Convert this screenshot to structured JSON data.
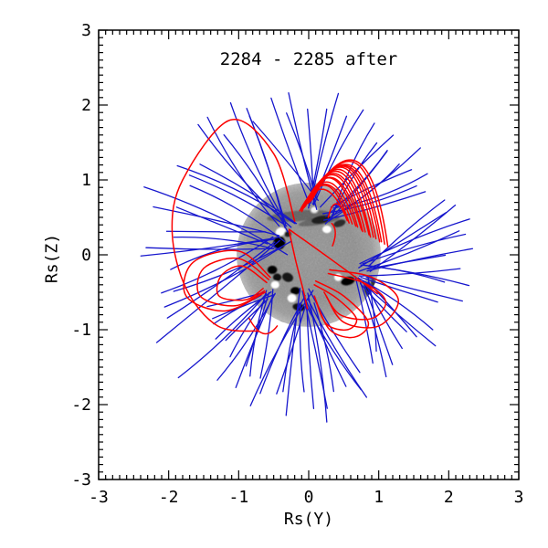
{
  "chart_data": {
    "type": "line",
    "title": "2284 - 2285 after",
    "xlabel": "Rs(Y)",
    "ylabel": "Rs(Z)",
    "xlim": [
      -3,
      3
    ],
    "ylim": [
      -3,
      3
    ],
    "xticks": [
      -3,
      -2,
      -1,
      0,
      1,
      2,
      3
    ],
    "yticks": [
      -3,
      -2,
      -1,
      0,
      1,
      2,
      3
    ],
    "xtick_labels": [
      "-3",
      "-2",
      "-1",
      "0",
      "1",
      "2",
      "3"
    ],
    "ytick_labels": [
      "-3",
      "-2",
      "-1",
      "0",
      "1",
      "2",
      "3"
    ],
    "minor_tick_step": 0.1,
    "grid": false,
    "legend_position": null,
    "description": "Coronal magnetic field line rendering over a solar magnetogram disk of radius 1 Rs centered at origin; blue open field lines, red closed field lines",
    "sun": {
      "center": [
        0,
        0
      ],
      "radius_rs": 1.0
    },
    "colors": {
      "open_line": "#1616cd",
      "closed_line": "#fb0000",
      "frame": "#000000",
      "background": "#ffffff",
      "disk_base": "#8f8f8f",
      "disk_limb": "#b9b9b9"
    },
    "open_field_fans": [
      {
        "name": "top",
        "n": 9,
        "foot": [
          0.05,
          0.65
        ],
        "foot_jitter": 0.12,
        "angles": [
          68,
          112
        ],
        "end_r": [
          1.9,
          2.25
        ],
        "curve": 0.07,
        "jitter_deg": 6,
        "seed": 11
      },
      {
        "name": "upper-right",
        "n": 11,
        "foot": [
          0.3,
          0.55
        ],
        "foot_jitter": 0.15,
        "angles": [
          26,
          64
        ],
        "end_r": [
          1.7,
          2.4
        ],
        "curve": 0.09,
        "jitter_deg": 7,
        "seed": 22
      },
      {
        "name": "right",
        "n": 12,
        "foot": [
          0.8,
          -0.2
        ],
        "foot_jitter": 0.1,
        "angles": [
          -16,
          22
        ],
        "end_r": [
          1.8,
          2.45
        ],
        "curve": 0.05,
        "jitter_deg": 6,
        "seed": 33
      },
      {
        "name": "lower-right",
        "n": 10,
        "foot": [
          0.75,
          -0.35
        ],
        "foot_jitter": 0.1,
        "angles": [
          -60,
          -22
        ],
        "end_r": [
          1.6,
          2.3
        ],
        "curve": 0.07,
        "jitter_deg": 7,
        "seed": 44
      },
      {
        "name": "bottom",
        "n": 14,
        "foot": [
          0.0,
          -0.55
        ],
        "foot_jitter": 0.15,
        "angles": [
          -112,
          -64
        ],
        "end_r": [
          1.7,
          2.25
        ],
        "curve": 0.05,
        "jitter_deg": 8,
        "seed": 55
      },
      {
        "name": "lower-left",
        "n": 12,
        "foot": [
          -0.58,
          -0.55
        ],
        "foot_jitter": 0.1,
        "angles": [
          -152,
          -112
        ],
        "end_r": [
          1.6,
          2.5
        ],
        "curve": 0.06,
        "jitter_deg": 7,
        "seed": 66
      },
      {
        "name": "left",
        "n": 14,
        "foot": [
          -0.42,
          0.18
        ],
        "foot_jitter": 0.2,
        "angles": [
          152,
          208
        ],
        "end_r": [
          1.9,
          2.6
        ],
        "curve": 0.09,
        "jitter_deg": 8,
        "seed": 77
      },
      {
        "name": "upper-left",
        "n": 9,
        "foot": [
          -0.3,
          0.45
        ],
        "foot_jitter": 0.15,
        "angles": [
          112,
          150
        ],
        "end_r": [
          1.7,
          2.35
        ],
        "curve": 0.1,
        "jitter_deg": 7,
        "seed": 88
      }
    ],
    "closed_arcade": {
      "n": 16,
      "footA_start": [
        -0.12,
        0.58
      ],
      "footA_end": [
        0.05,
        0.76
      ],
      "footB_start": [
        0.55,
        0.45
      ],
      "footB_end": [
        1.12,
        0.12
      ],
      "apex_angles": [
        76,
        60
      ],
      "apex_r": [
        0.92,
        1.42
      ],
      "jitter": 0.03,
      "seed": 99
    },
    "closed_paths": [
      {
        "name": "big-loop",
        "points": [
          [
            -0.2,
            0.45
          ],
          [
            -0.5,
            1.35
          ],
          [
            -1.12,
            1.8
          ],
          [
            -1.8,
            1.0
          ],
          [
            -1.95,
            0.3
          ],
          [
            -1.75,
            -0.45
          ],
          [
            -1.3,
            -0.95
          ],
          [
            -0.72,
            -1.02
          ]
        ]
      },
      {
        "name": "left-loop-1",
        "points": [
          [
            -0.55,
            -0.3
          ],
          [
            -1.0,
            0.05
          ],
          [
            -1.65,
            -0.1
          ],
          [
            -1.75,
            -0.55
          ],
          [
            -1.2,
            -0.75
          ],
          [
            -0.62,
            -0.5
          ]
        ]
      },
      {
        "name": "left-loop-2",
        "points": [
          [
            -0.57,
            -0.33
          ],
          [
            -1.0,
            -0.05
          ],
          [
            -1.5,
            -0.18
          ],
          [
            -1.55,
            -0.55
          ],
          [
            -1.05,
            -0.68
          ],
          [
            -0.63,
            -0.48
          ]
        ]
      },
      {
        "name": "left-loop-3",
        "points": [
          [
            -0.6,
            -0.37
          ],
          [
            -0.95,
            -0.15
          ],
          [
            -1.25,
            -0.28
          ],
          [
            -1.28,
            -0.55
          ],
          [
            -0.9,
            -0.6
          ],
          [
            -0.65,
            -0.45
          ]
        ]
      },
      {
        "name": "bottom-right-loop-1",
        "points": [
          [
            0.3,
            -0.2
          ],
          [
            0.9,
            -0.3
          ],
          [
            1.28,
            -0.6
          ],
          [
            1.0,
            -0.95
          ],
          [
            0.5,
            -0.9
          ],
          [
            0.25,
            -0.55
          ]
        ]
      },
      {
        "name": "bottom-right-loop-2",
        "points": [
          [
            0.28,
            -0.25
          ],
          [
            0.8,
            -0.38
          ],
          [
            1.1,
            -0.62
          ],
          [
            0.9,
            -0.85
          ],
          [
            0.45,
            -0.8
          ],
          [
            0.22,
            -0.5
          ]
        ]
      },
      {
        "name": "bottom-right-loop-3",
        "points": [
          [
            0.1,
            -0.35
          ],
          [
            0.5,
            -0.55
          ],
          [
            0.85,
            -0.9
          ],
          [
            0.65,
            -1.1
          ],
          [
            0.3,
            -1.0
          ],
          [
            0.1,
            -0.6
          ]
        ]
      },
      {
        "name": "bottom-right-loop-4",
        "points": [
          [
            0.08,
            -0.4
          ],
          [
            0.4,
            -0.58
          ],
          [
            0.68,
            -0.85
          ],
          [
            0.55,
            -1.0
          ],
          [
            0.25,
            -0.92
          ],
          [
            0.08,
            -0.55
          ]
        ]
      },
      {
        "name": "bottom-arc",
        "points": [
          [
            -0.85,
            -0.85
          ],
          [
            -0.65,
            -1.05
          ],
          [
            -0.45,
            -0.95
          ]
        ]
      },
      {
        "name": "connector-1",
        "points": [
          [
            -0.28,
            0.34
          ],
          [
            0.2,
            0.02
          ],
          [
            0.7,
            -0.32
          ],
          [
            0.98,
            -0.52
          ]
        ]
      },
      {
        "name": "connector-2",
        "points": [
          [
            -0.28,
            0.32
          ],
          [
            -0.18,
            -0.1
          ],
          [
            -0.07,
            -0.5
          ],
          [
            -0.02,
            -0.72
          ]
        ]
      },
      {
        "name": "small-top-loop",
        "points": [
          [
            0.28,
            0.5
          ],
          [
            0.38,
            0.68
          ],
          [
            0.52,
            0.55
          ]
        ]
      },
      {
        "name": "small-vertical",
        "points": [
          [
            0.34,
            0.12
          ],
          [
            0.38,
            0.3
          ],
          [
            0.33,
            0.42
          ]
        ]
      }
    ],
    "active_regions": [
      {
        "c": [
          -0.4,
          0.31
        ],
        "r": [
          0.075,
          0.055
        ],
        "rot": -20,
        "fill": "white",
        "o": 1
      },
      {
        "c": [
          -0.42,
          0.16
        ],
        "r": [
          0.085,
          0.09
        ],
        "rot": 10,
        "fill": "black",
        "o": 1
      },
      {
        "c": [
          -0.3,
          0.28
        ],
        "r": [
          0.05,
          0.04
        ],
        "rot": 0,
        "fill": "black",
        "o": 0.8
      },
      {
        "c": [
          -0.15,
          0.52
        ],
        "r": [
          0.45,
          0.07
        ],
        "rot": -5,
        "fill": "black",
        "o": 0.3
      },
      {
        "c": [
          0.15,
          0.45
        ],
        "r": [
          0.3,
          0.05
        ],
        "rot": -10,
        "fill": "black",
        "o": 0.3
      },
      {
        "c": [
          0.18,
          0.47
        ],
        "r": [
          0.14,
          0.05
        ],
        "rot": -10,
        "fill": "black",
        "o": 0.7
      },
      {
        "c": [
          0.26,
          0.34
        ],
        "r": [
          0.065,
          0.05
        ],
        "rot": 0,
        "fill": "white",
        "o": 1
      },
      {
        "c": [
          0.44,
          0.42
        ],
        "r": [
          0.09,
          0.045
        ],
        "rot": -20,
        "fill": "black",
        "o": 0.7
      },
      {
        "c": [
          0.08,
          0.6
        ],
        "r": [
          0.05,
          0.04
        ],
        "rot": 0,
        "fill": "white",
        "o": 0.9
      },
      {
        "c": [
          -0.52,
          -0.2
        ],
        "r": [
          0.07,
          0.055
        ],
        "rot": 0,
        "fill": "black",
        "o": 1
      },
      {
        "c": [
          -0.45,
          -0.3
        ],
        "r": [
          0.06,
          0.05
        ],
        "rot": 0,
        "fill": "black",
        "o": 0.9
      },
      {
        "c": [
          -0.3,
          -0.3
        ],
        "r": [
          0.08,
          0.06
        ],
        "rot": 20,
        "fill": "black",
        "o": 0.85
      },
      {
        "c": [
          -0.48,
          -0.4
        ],
        "r": [
          0.06,
          0.05
        ],
        "rot": 0,
        "fill": "white",
        "o": 1
      },
      {
        "c": [
          -0.24,
          -0.58
        ],
        "r": [
          0.065,
          0.055
        ],
        "rot": 0,
        "fill": "white",
        "o": 1
      },
      {
        "c": [
          -0.19,
          -0.48
        ],
        "r": [
          0.07,
          0.05
        ],
        "rot": 0,
        "fill": "black",
        "o": 1
      },
      {
        "c": [
          -0.14,
          -0.7
        ],
        "r": [
          0.09,
          0.05
        ],
        "rot": 10,
        "fill": "black",
        "o": 0.9
      },
      {
        "c": [
          0.42,
          -0.3
        ],
        "r": [
          0.055,
          0.05
        ],
        "rot": 0,
        "fill": "white",
        "o": 1
      },
      {
        "c": [
          0.56,
          -0.35
        ],
        "r": [
          0.1,
          0.055
        ],
        "rot": -15,
        "fill": "black",
        "o": 1
      },
      {
        "c": [
          0.77,
          -0.31
        ],
        "r": [
          0.05,
          0.045
        ],
        "rot": 0,
        "fill": "white",
        "o": 1
      },
      {
        "c": [
          0.85,
          -0.48
        ],
        "r": [
          0.05,
          0.11
        ],
        "rot": -20,
        "fill": "black",
        "o": 0.8
      },
      {
        "c": [
          0.93,
          -0.4
        ],
        "r": [
          0.04,
          0.08
        ],
        "rot": -15,
        "fill": "black",
        "o": 0.7
      },
      {
        "c": [
          -0.42,
          -0.93
        ],
        "r": [
          0.07,
          0.04
        ],
        "rot": 0,
        "fill": "black",
        "o": 0.7
      }
    ]
  }
}
